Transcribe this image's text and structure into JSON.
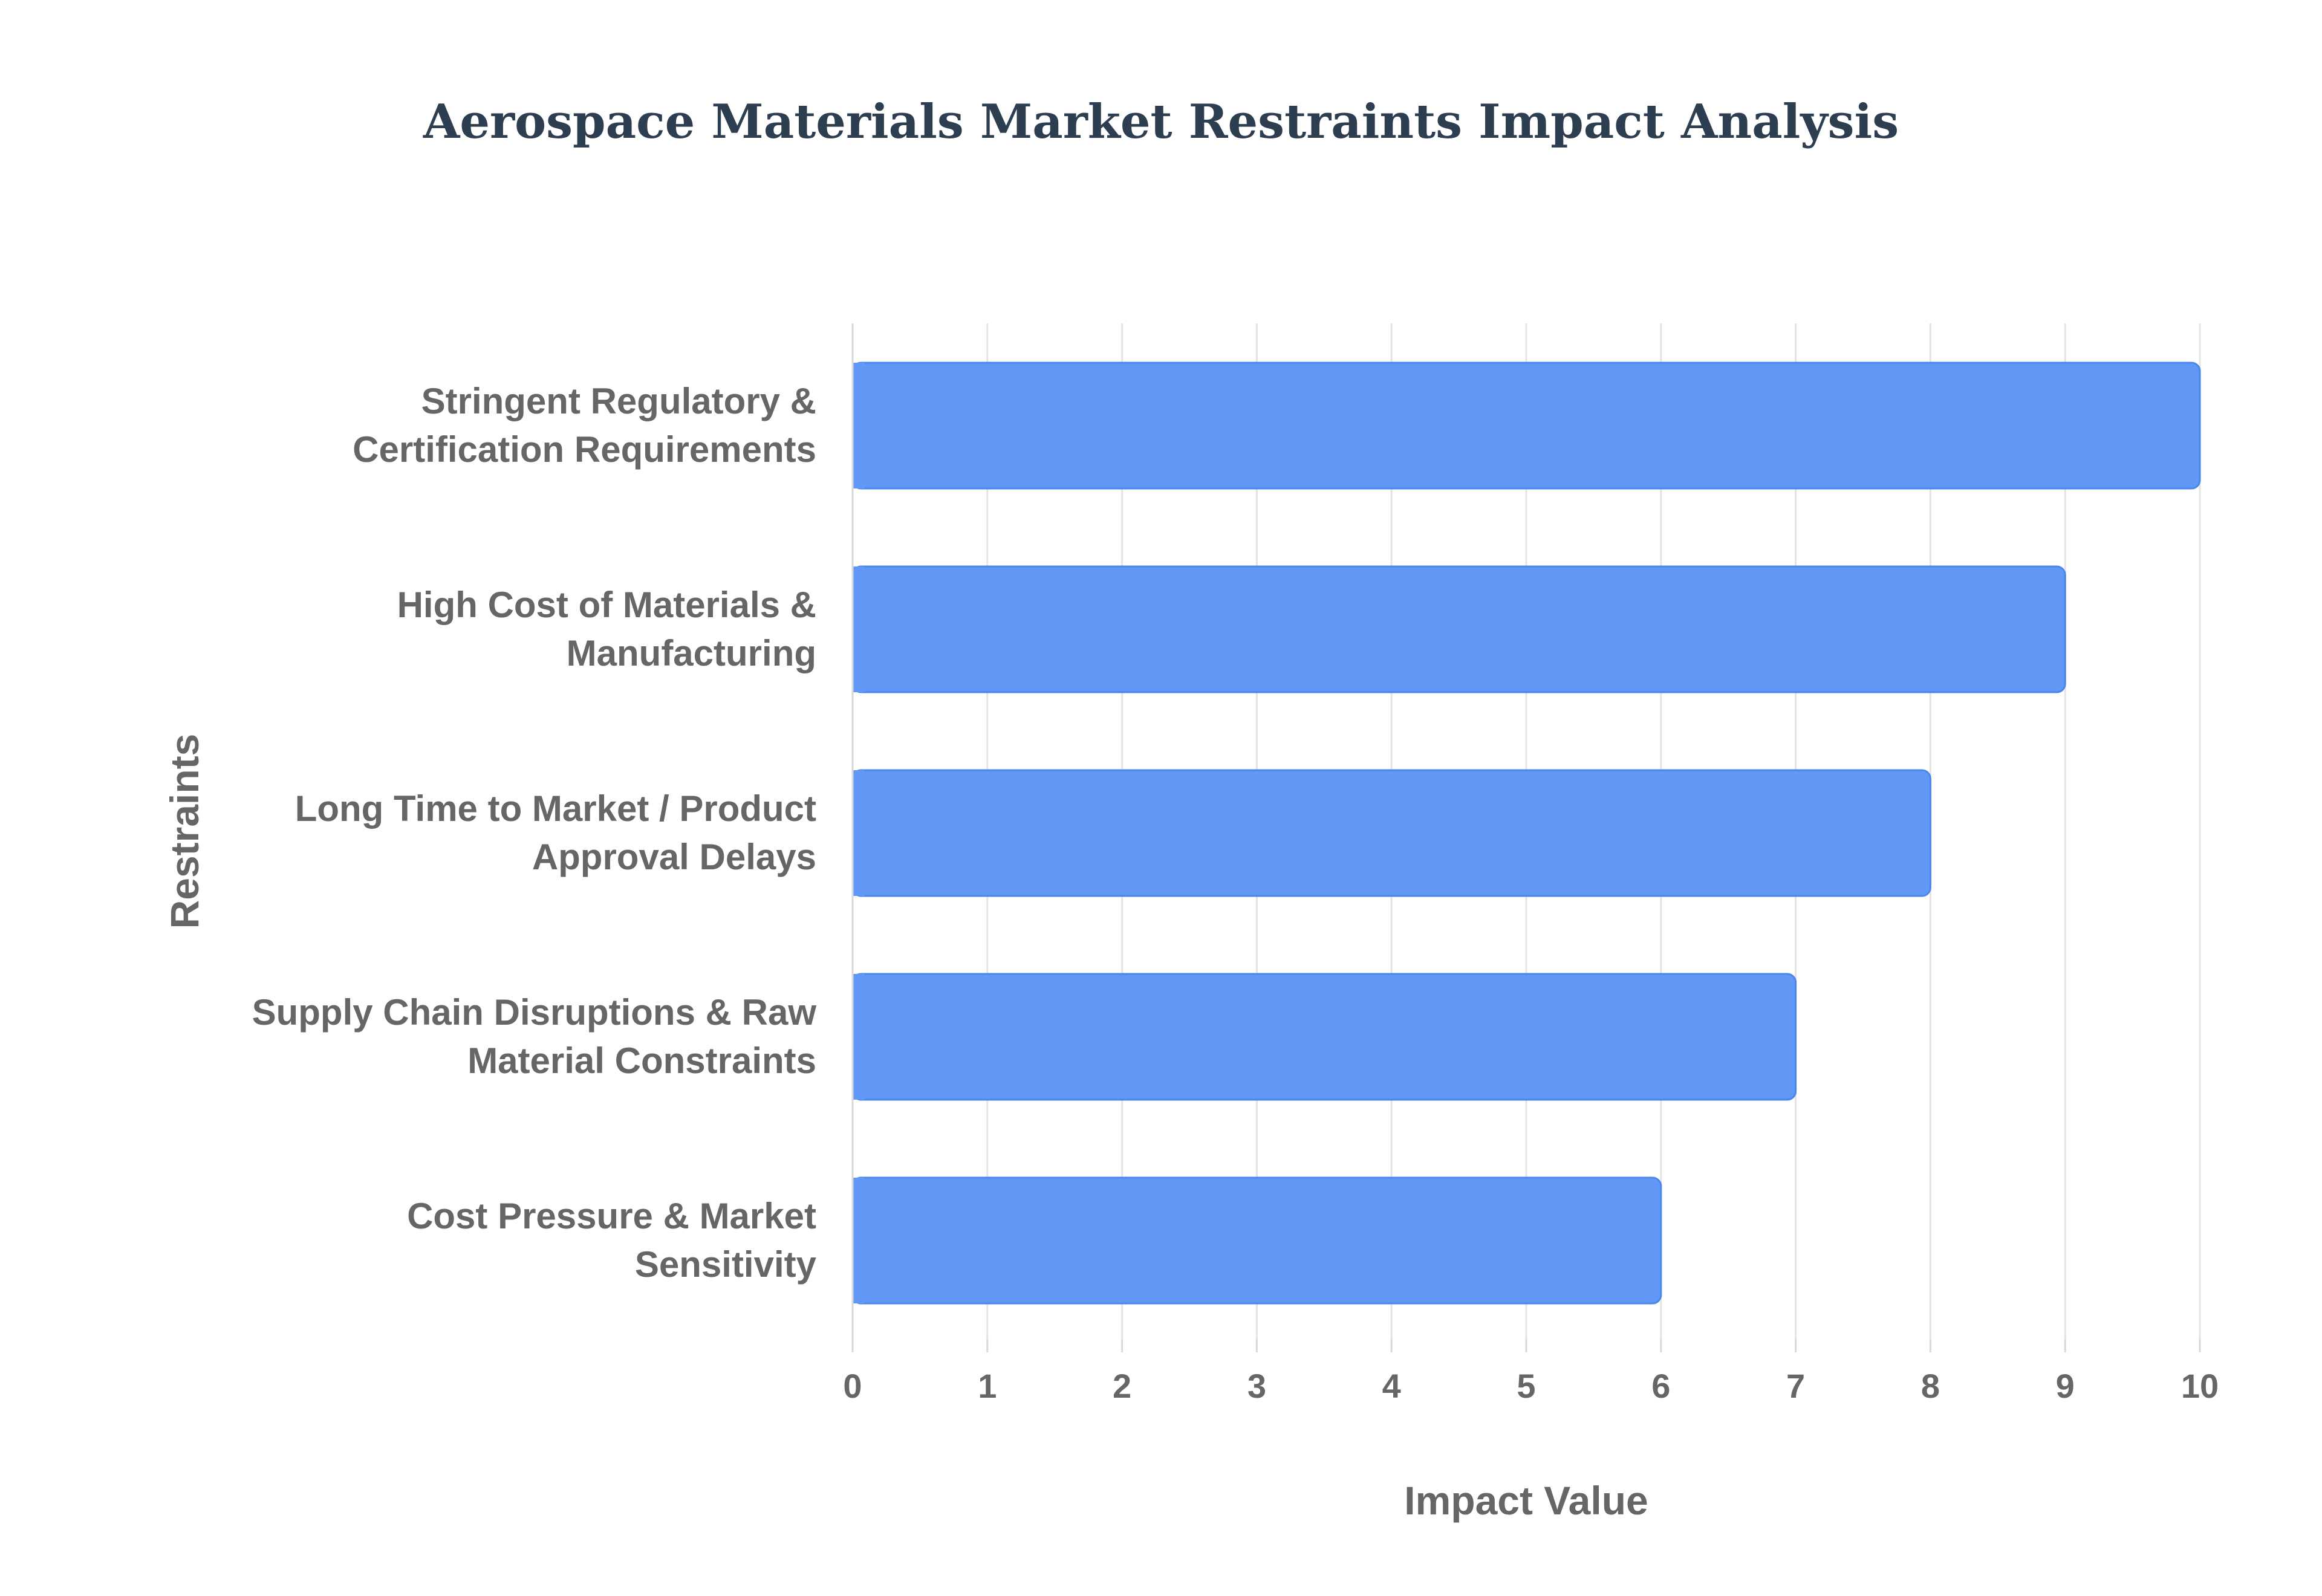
{
  "chart_data": {
    "type": "bar",
    "orientation": "horizontal",
    "title": "Aerospace Materials Market Restraints Impact Analysis",
    "xlabel": "Impact Value",
    "ylabel": "Restraints",
    "categories": [
      [
        "Stringent Regulatory &",
        "Certification Requirements"
      ],
      [
        "High Cost of Materials &",
        "Manufacturing"
      ],
      [
        "Long Time to Market / Product",
        "Approval Delays"
      ],
      [
        "Supply Chain Disruptions & Raw",
        "Material Constraints"
      ],
      [
        "Cost Pressure & Market",
        "Sensitivity"
      ]
    ],
    "values": [
      10,
      9,
      8,
      7,
      6
    ],
    "xlim": [
      0,
      10
    ],
    "xticks": [
      0,
      1,
      2,
      3,
      4,
      5,
      6,
      7,
      8,
      9,
      10
    ],
    "grid": true,
    "legend": "none",
    "bar_color": "#6198f5",
    "bar_border_color": "#4a86ec"
  }
}
